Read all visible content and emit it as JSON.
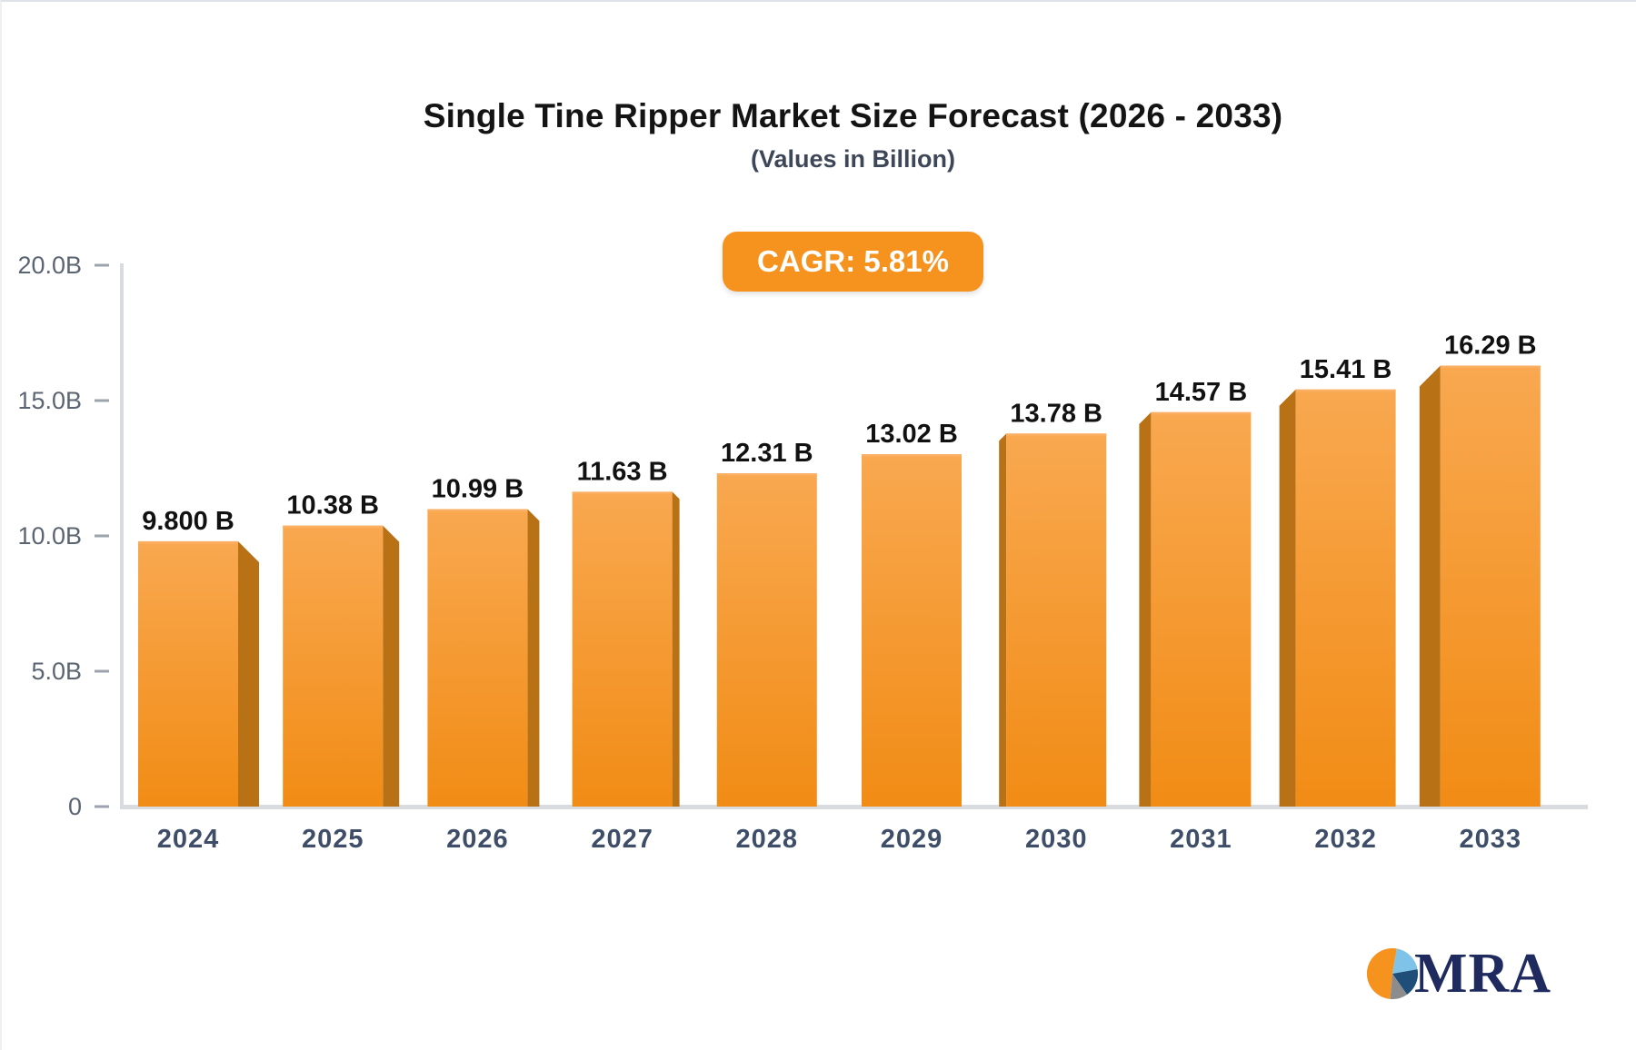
{
  "header": {
    "title": "Single Tine Ripper Market Size Forecast (2026 - 2033)",
    "subtitle": "(Values in Billion)"
  },
  "badge": {
    "label": "CAGR: 5.81%"
  },
  "chart_data": {
    "type": "bar",
    "title": "Single Tine Ripper Market Size Forecast (2026 - 2033)",
    "subtitle": "(Values in Billion)",
    "cagr": "5.81%",
    "categories": [
      "2024",
      "2025",
      "2026",
      "2027",
      "2028",
      "2029",
      "2030",
      "2031",
      "2032",
      "2033"
    ],
    "values": [
      9.8,
      10.38,
      10.99,
      11.63,
      12.31,
      13.02,
      13.78,
      14.57,
      15.41,
      16.29
    ],
    "value_labels": [
      "9.800 B",
      "10.38 B",
      "10.99 B",
      "11.63 B",
      "12.31 B",
      "13.02 B",
      "13.78 B",
      "14.57 B",
      "15.41 B",
      "16.29 B"
    ],
    "unit": "Billion",
    "ylim": [
      0,
      20
    ],
    "ytick_labels": [
      "0",
      "5.0B",
      "10.0B",
      "15.0B",
      "20.0B"
    ],
    "ytick_values": [
      0,
      5,
      10,
      15,
      20
    ],
    "grid": "off",
    "legend": "none",
    "colors": {
      "bar_top": "#F9A850",
      "bar_bottom": "#F18C15",
      "bar_side": "#B97116",
      "bar_top_edge": "#FBAF63",
      "axis_line": "#D8DBDF",
      "tick_mark": "#9CA3AD",
      "y_label": "#5B6572",
      "x_label": "#3F4E68",
      "value_label": "#111111"
    }
  },
  "logo": {
    "text": "MRA",
    "text_color": "#1F2A5E",
    "pie_colors": {
      "orange": "#F6921E",
      "light_blue": "#7FC4E8",
      "navy": "#1F4E79",
      "gray": "#8C8C8C"
    }
  }
}
